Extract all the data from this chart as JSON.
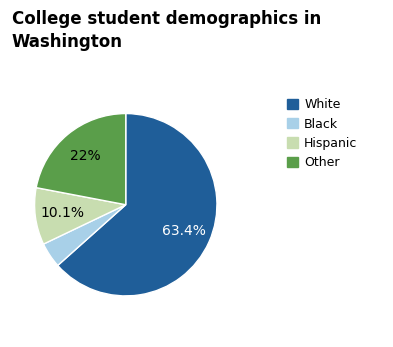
{
  "title": "College student demographics in\nWashington",
  "slices": [
    63.4,
    4.5,
    10.1,
    22.0
  ],
  "labels": [
    "White",
    "Black",
    "Hispanic",
    "Other"
  ],
  "colors": [
    "#1F5E99",
    "#A8D0E8",
    "#C8DDB0",
    "#5A9E4A"
  ],
  "pct_labels": [
    "63.4%",
    "",
    "10.1%",
    "22%"
  ],
  "legend_labels": [
    "White",
    "Black",
    "Hispanic",
    "Other"
  ],
  "legend_colors": [
    "#1F5E99",
    "#A8D0E8",
    "#C8DDB0",
    "#5A9E4A"
  ],
  "startangle": 90,
  "title_fontsize": 12,
  "pct_fontsize": 10
}
